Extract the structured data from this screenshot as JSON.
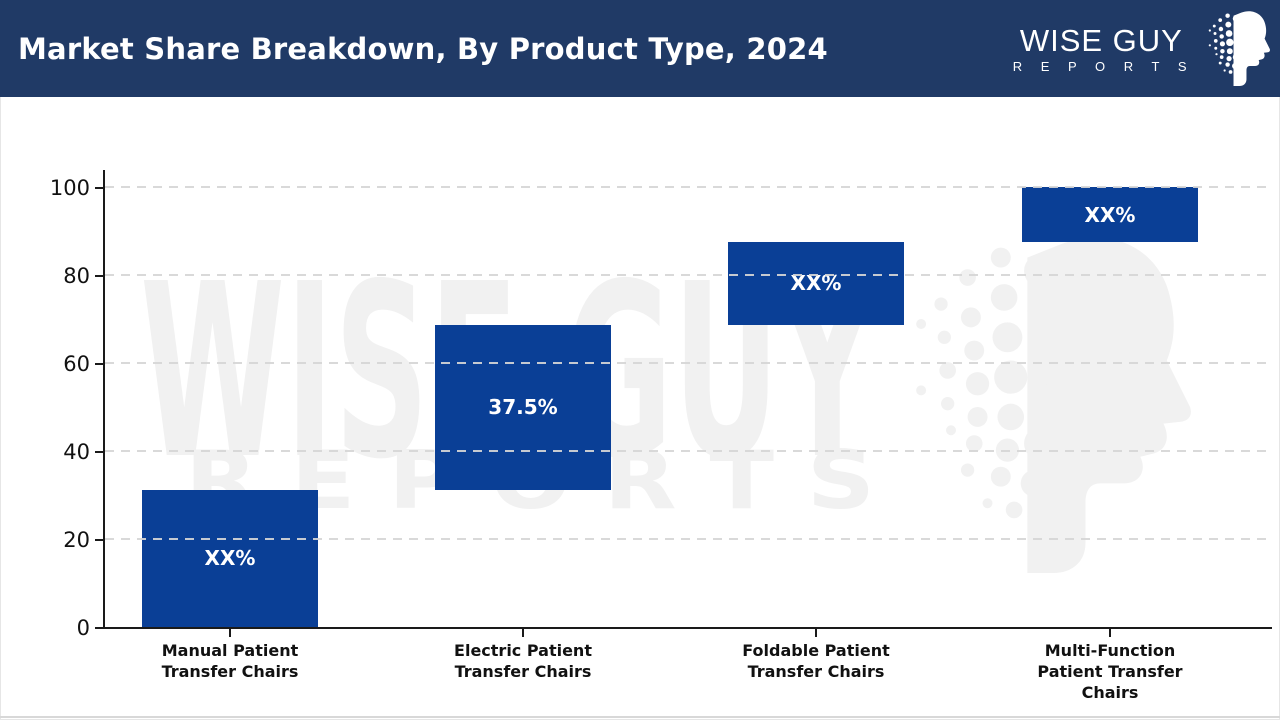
{
  "header": {
    "title": "Market Share Breakdown, By Product Type, 2024",
    "logo": {
      "brand": "WISE GUY",
      "sub": "R E P O R T S"
    }
  },
  "watermark": {
    "brand": "WISE GUY",
    "sub": "R E P O R T S"
  },
  "colors": {
    "header_bg": "#203a66",
    "bar": "#0a3f96",
    "bar_label": "#ffffff",
    "axis": "#1a1a1a",
    "grid": "#d6d6d6",
    "watermark": "#f1f1f1",
    "title_text": "#ffffff"
  },
  "chart_data": {
    "type": "bar",
    "variant": "waterfall",
    "title": "Market Share Breakdown, By Product Type, 2024",
    "categories": [
      "Manual Patient Transfer Chairs",
      "Electric Patient Transfer Chairs",
      "Foldable Patient Transfer Chairs",
      "Multi-Function Patient Transfer Chairs"
    ],
    "category_lines": [
      [
        "Manual Patient",
        "Transfer Chairs"
      ],
      [
        "Electric Patient",
        "Transfer Chairs"
      ],
      [
        "Foldable Patient",
        "Transfer Chairs"
      ],
      [
        "Multi-Function",
        "Patient Transfer",
        "Chairs"
      ]
    ],
    "bar_labels": [
      "XX%",
      "37.5%",
      "XX%",
      "XX%"
    ],
    "segment_values": [
      31.25,
      37.5,
      18.75,
      12.5
    ],
    "cumulative_start": [
      0,
      31.25,
      68.75,
      87.5
    ],
    "cumulative_end": [
      31.25,
      68.75,
      87.5,
      100
    ],
    "ylim": [
      0,
      100
    ],
    "yticks": [
      0,
      20,
      40,
      60,
      80,
      100
    ],
    "xlabel": "",
    "ylabel": "",
    "grid": "horizontal-dashed",
    "legend": "none"
  }
}
